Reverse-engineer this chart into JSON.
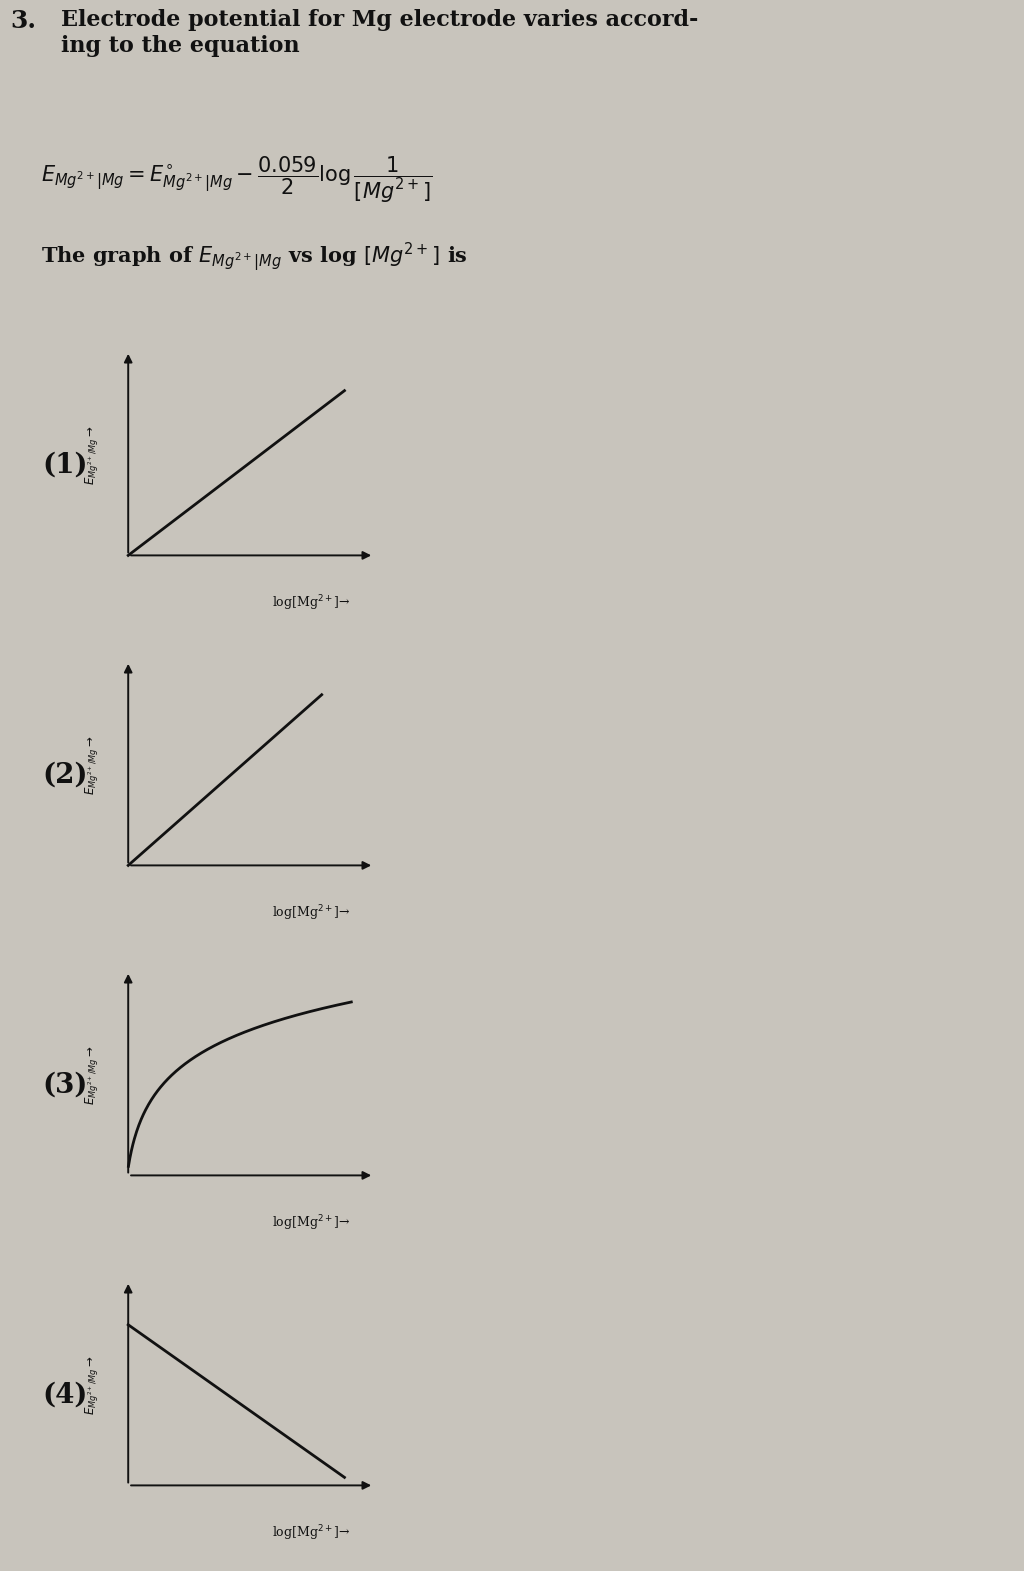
{
  "background_color": "#c8c4bc",
  "text_color": "#111111",
  "line_color": "#111111",
  "fig_width": 10.24,
  "fig_height": 15.71,
  "graphs": [
    {
      "type": "linear_from_origin",
      "label": "(1)"
    },
    {
      "type": "linear_steep",
      "label": "(2)"
    },
    {
      "type": "log_curve",
      "label": "(3)"
    },
    {
      "type": "linear_negative",
      "label": "(4)"
    }
  ],
  "ylabel_texts": [
    "$E_{Mg^{2+}/Mg}\\rightarrow$",
    "$E_{Mg^{2+}/Mg}\\rightarrow$",
    "$E_{Mg^{2+}/Mg}\\rightarrow$",
    "$E_{Mg^{2+}/Mg}\\rightarrow$"
  ],
  "xlabel_text": "log[Mg$^{2+}$]→",
  "header_number": "3.",
  "title_line1": "Electrode potential for Mg electrode varies accord-",
  "title_line2": "ing to the equation",
  "graph_intro": "The graph of $E_{Mg^{2+}|Mg}$ vs log $[Mg^{2+}]$ is"
}
